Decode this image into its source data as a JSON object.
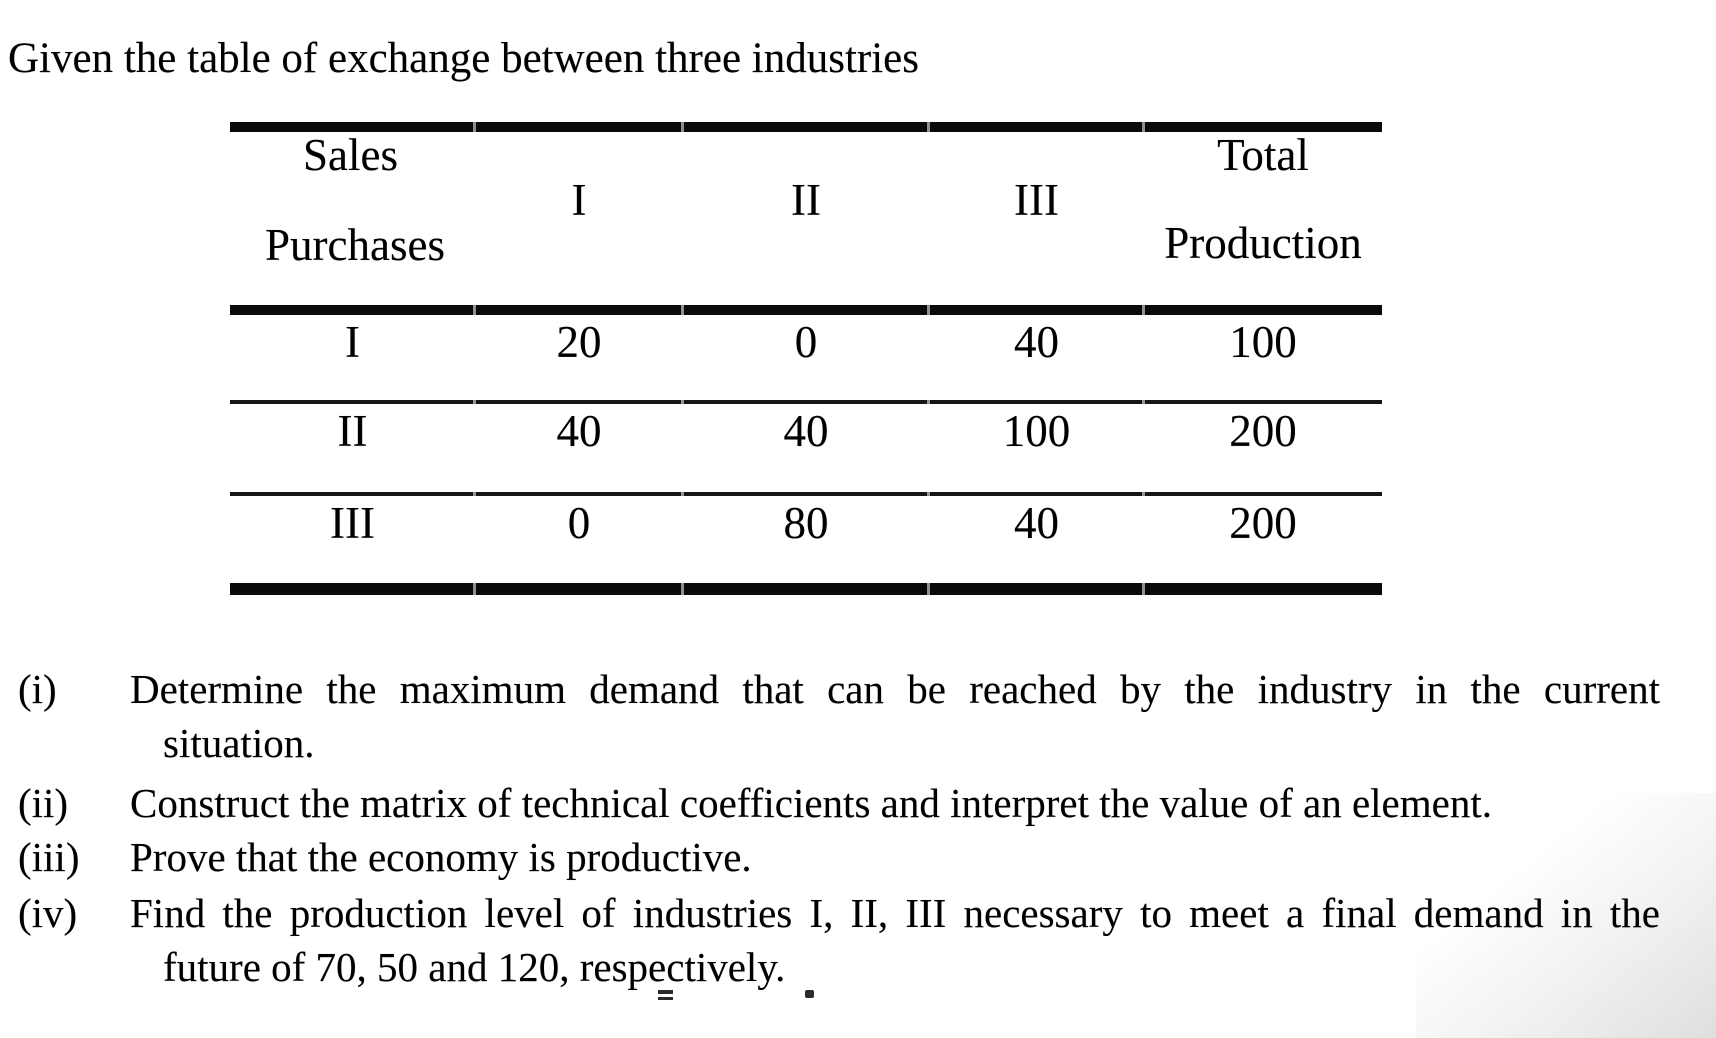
{
  "title": "Given the table of exchange between three industries",
  "table": {
    "corner": {
      "top": "Sales",
      "bottom": "Purchases"
    },
    "columns": [
      "I",
      "II",
      "III"
    ],
    "total_header": {
      "top": "Total",
      "bottom": "Production"
    },
    "rows": [
      {
        "label": "I",
        "values": [
          "20",
          "0",
          "40",
          "100"
        ]
      },
      {
        "label": "II",
        "values": [
          "40",
          "40",
          "100",
          "200"
        ]
      },
      {
        "label": "III",
        "values": [
          "0",
          "80",
          "40",
          "200"
        ]
      }
    ]
  },
  "questions": [
    {
      "label": "(i)",
      "lines": [
        "Determine the maximum demand that can be reached by the industry in the current",
        "situation."
      ]
    },
    {
      "label": "(ii)",
      "lines": [
        "Construct the matrix of technical coefficients and interpret the value of an element."
      ]
    },
    {
      "label": "(iii)",
      "lines": [
        "Prove that the economy is productive."
      ]
    },
    {
      "label": "(iv)",
      "lines": [
        "Find the production level of industries I, II, III necessary to meet a final demand in the",
        "future of 70, 50 and 120, respectively."
      ]
    }
  ]
}
